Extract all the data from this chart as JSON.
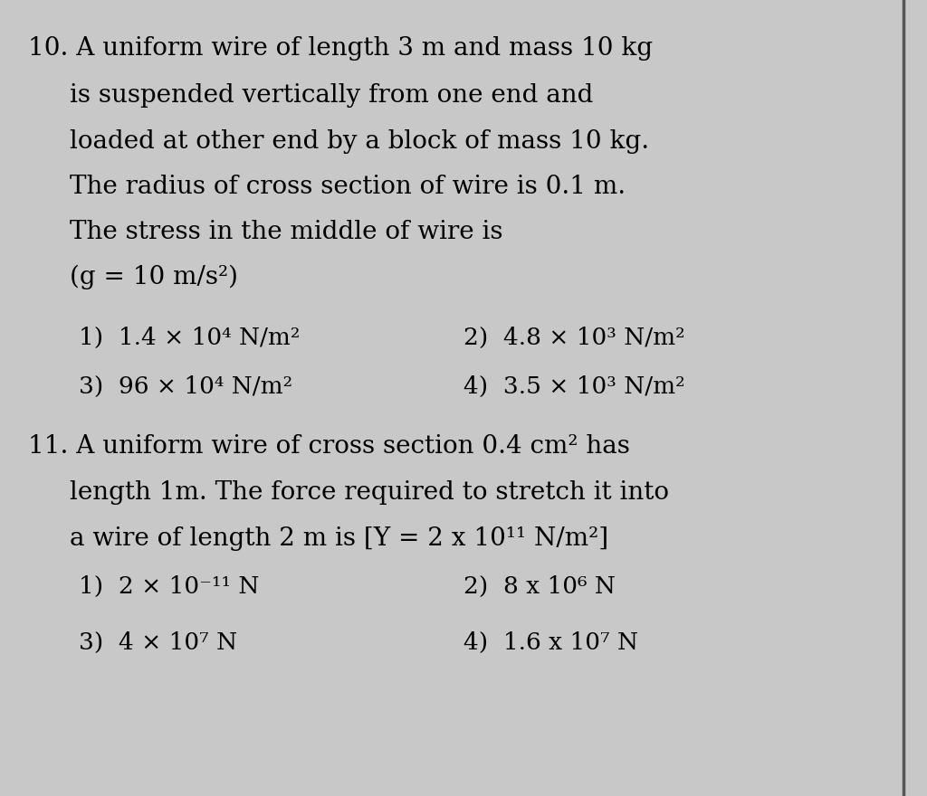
{
  "background_color": "#c8c8c8",
  "text_color": "#000000",
  "fig_width": 10.24,
  "fig_height": 8.8,
  "q10_number": "10.",
  "q10_line1": "A uniform wire of length 3 m and mass 10 kg",
  "q10_line2": "is suspended vertically from one end and",
  "q10_line3": "loaded at other end by a block of mass 10 kg.",
  "q10_line4": "The radius of cross section of wire is 0.1 m.",
  "q10_line5": "The stress in the middle of wire is",
  "q10_line6": "(g = 10 m/s²)",
  "q10_opt1": "1)  1.4 × 10⁴ N/m²",
  "q10_opt2": "2)  4.8 × 10³ N/m²",
  "q10_opt3": "3)  96 × 10⁴ N/m²",
  "q10_opt4": "4)  3.5 × 10³ N/m²",
  "q11_number": "11.",
  "q11_line1": "A uniform wire of cross section 0.4 cm² has",
  "q11_line2": "length 1m. The force required to stretch it into",
  "q11_line3": "a wire of length 2 m is [Y = 2 x 10¹¹ N/m²]",
  "q11_opt1": "1)  2 × 10⁻¹¹ N",
  "q11_opt2": "2)  8 x 10⁶ N",
  "q11_opt3": "3)  4 × 10⁷ N",
  "q11_opt4": "4)  1.6 x 10⁷ N",
  "font_size_q": 20,
  "font_size_opt": 19,
  "font_family": "serif",
  "border_color": "#555555",
  "border_linewidth": 2.5
}
